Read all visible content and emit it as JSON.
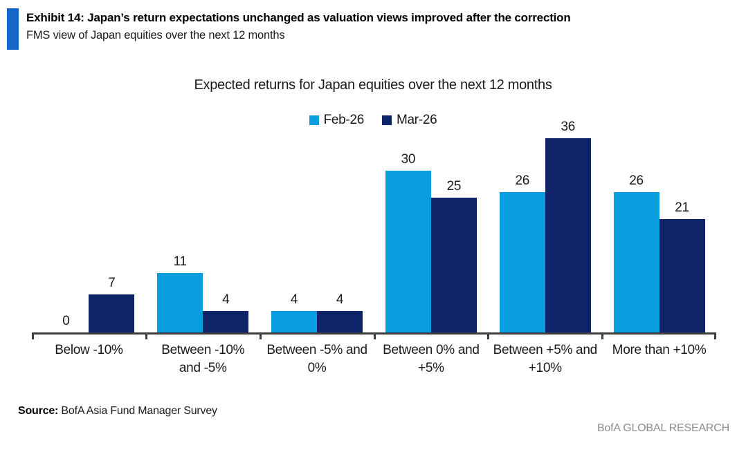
{
  "header": {
    "exhibit_title": "Exhibit 14: Japan’s return expectations unchanged as valuation views improved after the correction",
    "subtitle": "FMS view of Japan equities over the next 12 months"
  },
  "chart_data": {
    "type": "bar",
    "title": "Expected returns for Japan equities over the next 12 months",
    "categories": [
      "Below -10%",
      "Between -10% and -5%",
      "Between -5% and 0%",
      "Between 0% and +5%",
      "Between +5% and +10%",
      "More than +10%"
    ],
    "series": [
      {
        "name": "Feb-26",
        "color": "#089DDE",
        "values": [
          0,
          11,
          4,
          30,
          26,
          26
        ]
      },
      {
        "name": "Mar-26",
        "color": "#0F2468",
        "values": [
          7,
          4,
          4,
          25,
          36,
          21
        ]
      }
    ],
    "ylim": [
      0,
      40
    ],
    "grid": false,
    "legend_position": "top-center",
    "value_labels": true,
    "xlabel": "",
    "ylabel": ""
  },
  "footer": {
    "source_label": "Source:",
    "source_text": " BofA Asia Fund Manager Survey",
    "brand": "BofA GLOBAL RESEARCH"
  },
  "style": {
    "accent_color": "#1666C9",
    "axis_color": "#3D3D3D"
  }
}
